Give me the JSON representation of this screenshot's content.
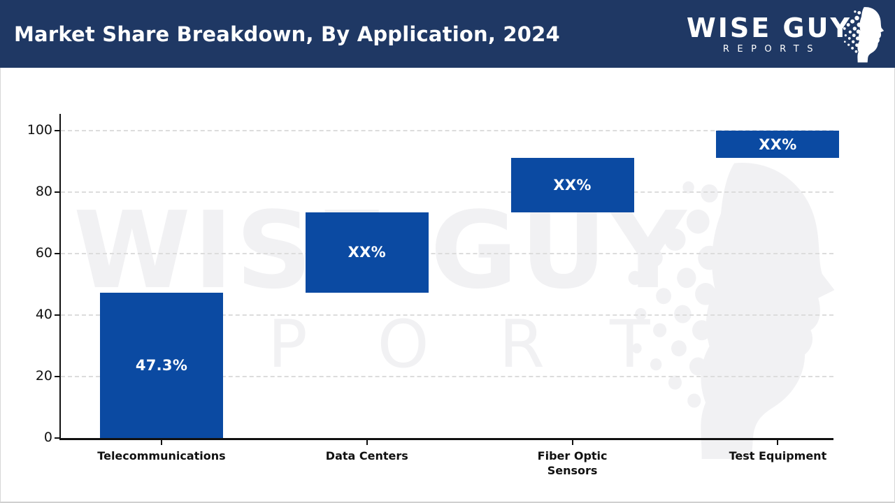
{
  "header": {
    "title": "Market Share Breakdown, By Application, 2024",
    "logo": {
      "line1": "WISE GUY",
      "line2": "REPORTS"
    }
  },
  "watermark": {
    "line1": "WISE GUY",
    "line2": "PORTS"
  },
  "colors": {
    "header_bg": "#1f3864",
    "bar": "#0b4aa2",
    "bar_label": "#ffffff",
    "grid": "#dcdcdc",
    "axis": "#111111",
    "watermark": "#f1f1f3"
  },
  "chart_data": {
    "type": "bar",
    "subtype": "floating-waterfall",
    "title": "Market Share Breakdown, By Application, 2024",
    "categories": [
      "Telecommunications",
      "Data Centers",
      "Fiber Optic Sensors",
      "Test Equipment"
    ],
    "series": [
      {
        "name": "Market share (%)",
        "segments": [
          {
            "category": "Telecommunications",
            "start": 0,
            "end": 47.3,
            "label": "47.3%"
          },
          {
            "category": "Data Centers",
            "start": 47.3,
            "end": 73.4,
            "label": "XX%"
          },
          {
            "category": "Fiber Optic Sensors",
            "start": 73.4,
            "end": 91.1,
            "label": "XX%"
          },
          {
            "category": "Test Equipment",
            "start": 91.1,
            "end": 100,
            "label": "XX%"
          }
        ]
      }
    ],
    "xlabel": "",
    "ylabel": "",
    "ylim": [
      0,
      100
    ],
    "yticks": [
      0,
      20,
      40,
      60,
      80,
      100
    ],
    "grid": "horizontal dashed",
    "legend": "none"
  }
}
